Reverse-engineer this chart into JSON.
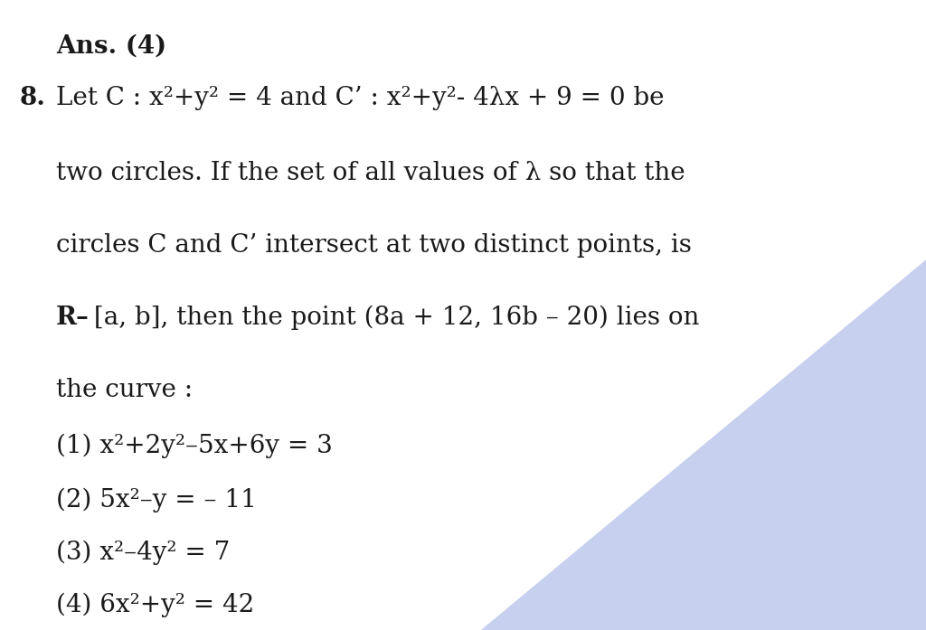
{
  "background_color": "#ffffff",
  "fig_width": 10.24,
  "fig_height": 6.97,
  "text_color": "#1a1a1a",
  "watermark_color": "#c8d0f0",
  "font_size_ans": 20,
  "font_size_q": 20,
  "font_size_main": 20,
  "font_size_opt": 20,
  "ans_bold": "Ans. (4)",
  "q_num": "8.",
  "line1": "Let C : x²+y² = 4 and C’ : x²+y²- 4λx + 9 = 0 be",
  "line2": "two circles. If the set of all values of λ so that the",
  "line3": "circles C and C’ intersect at two distinct points, is",
  "line4_bold": "R–",
  "line4_rest": " [a, b], then the point (8a + 12, 16b – 20) lies on",
  "line5": "the curve :",
  "opt1": "(1) x²+2y²–5x+6y = 3",
  "opt2": "(2) 5x²–y = – 11",
  "opt3": "(3) x²–4y² = 7",
  "opt4": "(4) 6x²+y² = 42"
}
